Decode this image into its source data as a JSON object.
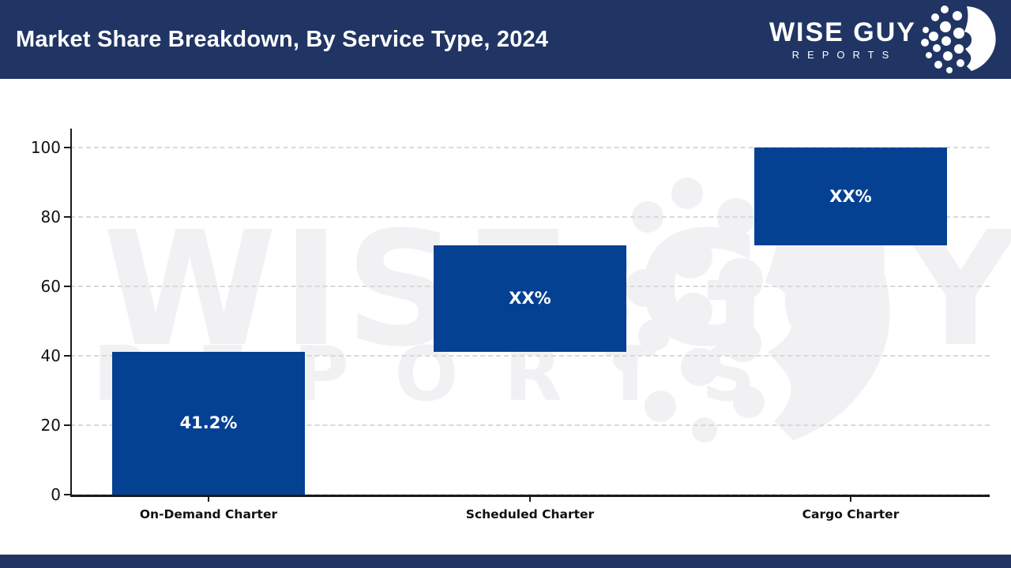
{
  "header": {
    "title": "Market Share Breakdown, By Service Type, 2024",
    "brand": {
      "name": "WISE GUY",
      "subtitle": "REPORTS"
    }
  },
  "watermark": {
    "line1": "WISE GUY",
    "line2": "REPORTS"
  },
  "chart_data": {
    "type": "bar",
    "subtype": "floating-waterfall",
    "title": "Market Share Breakdown, By Service Type, 2024",
    "categories": [
      "On-Demand Charter",
      "Scheduled Charter",
      "Cargo Charter"
    ],
    "segments": [
      {
        "category": "On-Demand Charter",
        "start": 0,
        "end": 41.2,
        "label": "41.2%"
      },
      {
        "category": "Scheduled Charter",
        "start": 41.2,
        "end": 71.8,
        "label": "XX%"
      },
      {
        "category": "Cargo Charter",
        "start": 71.8,
        "end": 100,
        "label": "XX%"
      }
    ],
    "yticks": [
      0,
      20,
      40,
      60,
      80,
      100
    ],
    "ylim": [
      0,
      105.5
    ],
    "xlabel": "",
    "ylabel": "",
    "legend": "none",
    "grid": {
      "axis": "y",
      "style": "dashed"
    }
  },
  "colors": {
    "header_bg": "#213564",
    "footer_bg": "#213564",
    "bar": "#044193",
    "bar_label": "#ffffff",
    "grid": "#d9d9d9",
    "axis": "#1a1a1a",
    "watermark": "#f1f1f4"
  }
}
